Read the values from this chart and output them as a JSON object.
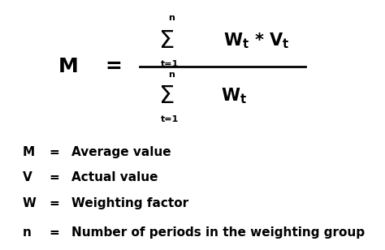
{
  "bg_color": "#ffffff",
  "border_color": "#000000",
  "legend": [
    {
      "var": "M",
      "desc": "Average value"
    },
    {
      "var": "V",
      "desc": "Actual value"
    },
    {
      "var": "W",
      "desc": "Weighting factor"
    },
    {
      "var": "n",
      "desc": "Number of periods in the weighting group"
    }
  ],
  "font_size_main": 15,
  "font_size_legend": 11,
  "font_size_small": 8,
  "font_size_sigma": 20
}
